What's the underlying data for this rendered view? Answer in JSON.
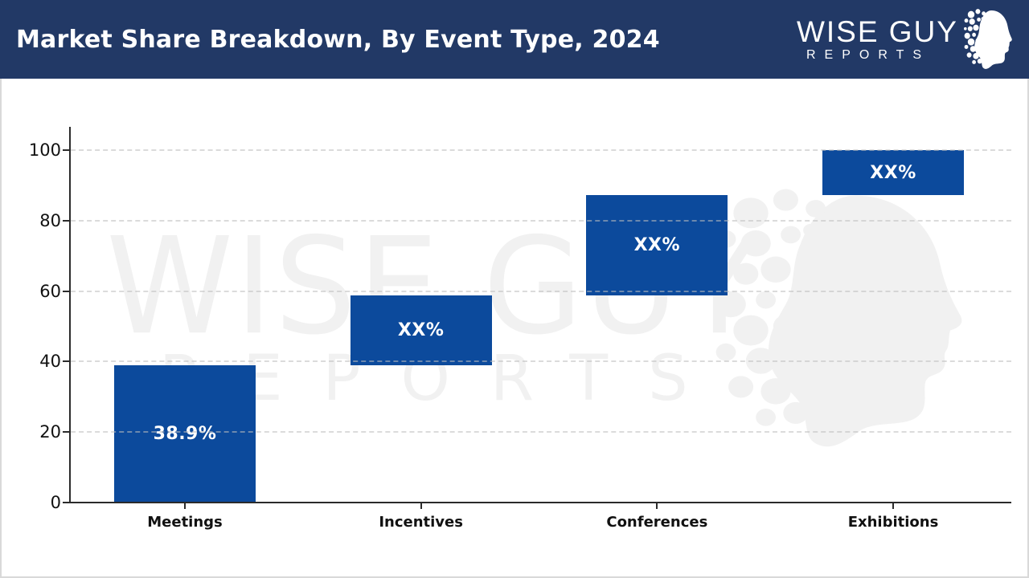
{
  "header": {
    "title": "Market Share Breakdown, By Event Type, 2024",
    "logo": {
      "line1": "WISE GUY",
      "line2": "REPORTS"
    }
  },
  "watermark": {
    "line1": "WISE GUY",
    "line2": "REPORTS"
  },
  "colors": {
    "header_bg": "#223966",
    "bar_blue": "#0c4a9c",
    "grid_gray": "#d9d9d9",
    "axis_dark": "#2b2b2b",
    "watermark_gray": "#f1f1f1",
    "title_text": "#ffffff"
  },
  "chart_data": {
    "type": "bar",
    "subtype": "waterfall",
    "title": "Market Share Breakdown, By Event Type, 2024",
    "xlabel": "",
    "ylabel": "",
    "categories": [
      "Meetings",
      "Incentives",
      "Conferences",
      "Exhibitions"
    ],
    "segments": [
      {
        "category": "Meetings",
        "start": 0,
        "end": 38.9,
        "value": 38.9,
        "label": "38.9%"
      },
      {
        "category": "Incentives",
        "start": 38.9,
        "end": 58.8,
        "value": 19.9,
        "label": "XX%"
      },
      {
        "category": "Conferences",
        "start": 58.8,
        "end": 87.2,
        "value": 28.4,
        "label": "XX%"
      },
      {
        "category": "Exhibitions",
        "start": 87.2,
        "end": 100,
        "value": 12.8,
        "label": "XX%"
      }
    ],
    "yticks": [
      0,
      20,
      40,
      60,
      80,
      100
    ],
    "ylim": [
      0,
      106
    ],
    "grid": "horizontal dashed",
    "legend": "none",
    "bar_color": "#0c4a9c",
    "bar_label_color": "#ffffff"
  }
}
